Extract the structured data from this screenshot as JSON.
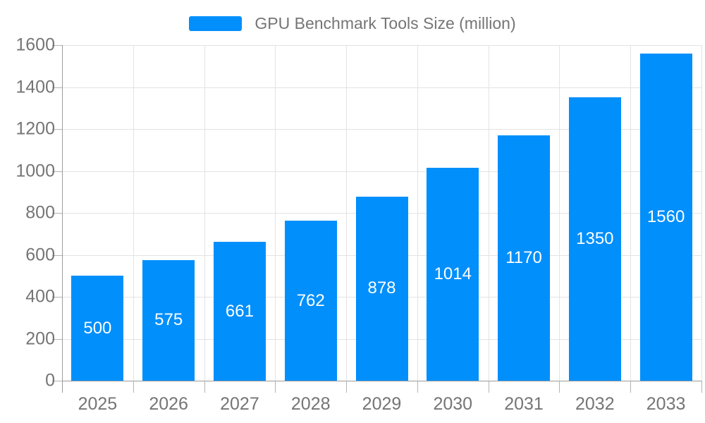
{
  "chart_data": {
    "type": "bar",
    "title": "GPU Benchmark Tools Size (million)",
    "categories": [
      "2025",
      "2026",
      "2027",
      "2028",
      "2029",
      "2030",
      "2031",
      "2032",
      "2033"
    ],
    "series": [
      {
        "name": "GPU Benchmark Tools Size (million)",
        "values": [
          500,
          575,
          661,
          762,
          878,
          1014,
          1170,
          1350,
          1560
        ]
      }
    ],
    "data_labels": [
      "500",
      "575",
      "661",
      "762",
      "878",
      "1014",
      "1170",
      "1350",
      "1560"
    ],
    "xlabel": "",
    "ylabel": "",
    "ylim": [
      0,
      1600
    ],
    "ytick_step": 200,
    "ytick_labels": [
      "0",
      "200",
      "400",
      "600",
      "800",
      "1000",
      "1200",
      "1400",
      "1600"
    ],
    "grid": true,
    "legend_position": "top",
    "colors": {
      "bar": "#008FFB",
      "bar_label": "#FFFFFF",
      "axis_text": "#757575",
      "grid_line": "#E3E3E3",
      "axis_line": "#9B9B9B",
      "tick": "#B3B3B3",
      "background": "#FFFFFF"
    }
  }
}
